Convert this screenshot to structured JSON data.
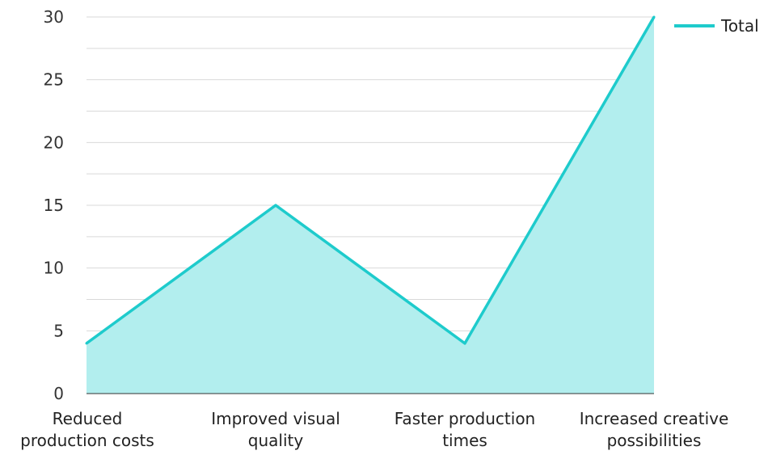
{
  "chart_data": {
    "type": "area",
    "categories": [
      [
        "Reduced",
        "production costs"
      ],
      [
        "Improved visual",
        "quality"
      ],
      [
        "Faster production",
        "times"
      ],
      [
        "Increased creative",
        "possibilities"
      ]
    ],
    "series": [
      {
        "name": "Total",
        "values": [
          4,
          15,
          4,
          30
        ],
        "color": "#1ecbcc",
        "fill": "#b2eeee"
      }
    ],
    "y_ticks": [
      "0",
      "5",
      "10",
      "15",
      "20",
      "25",
      "30"
    ],
    "ylim": [
      0,
      30
    ],
    "grid": true,
    "legend": "top-right"
  }
}
